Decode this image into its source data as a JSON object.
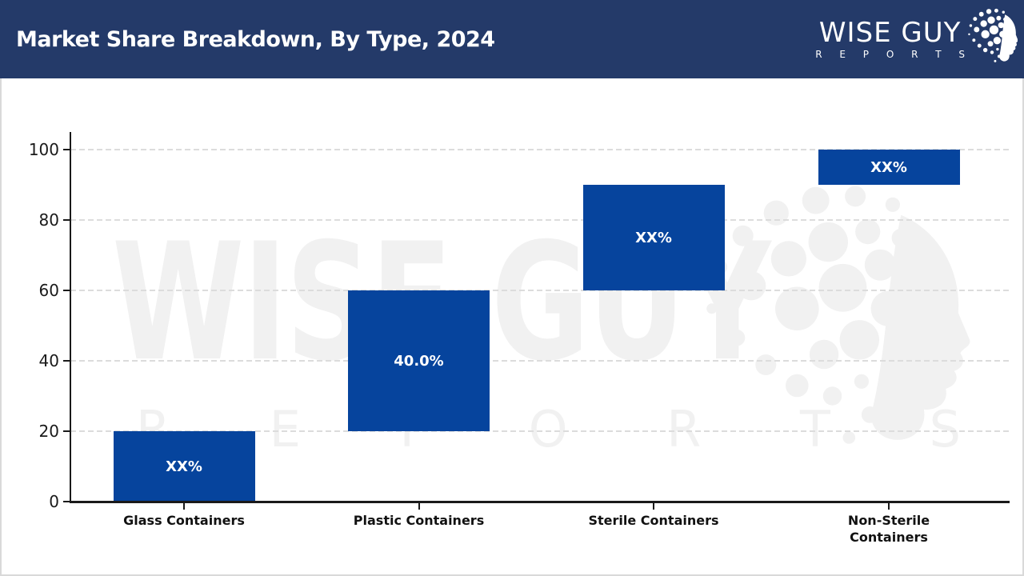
{
  "header": {
    "title": "Market Share Breakdown, By Type, 2024",
    "logo": {
      "name": "WISE GUY",
      "sub": "R E P O R T S"
    }
  },
  "watermark": {
    "name": "WISE GUY",
    "sub": "R E P O R T S"
  },
  "chart_data": {
    "type": "bar",
    "subtype": "waterfall",
    "title": "Market Share Breakdown, By Type, 2024",
    "categories": [
      "Glass Containers",
      "Plastic Containers",
      "Sterile Containers",
      "Non-Sterile\nContainers"
    ],
    "segments": [
      {
        "category": "Glass Containers",
        "start": 0,
        "end": 20,
        "label": "XX%"
      },
      {
        "category": "Plastic Containers",
        "start": 20,
        "end": 60,
        "label": "40.0%"
      },
      {
        "category": "Sterile Containers",
        "start": 60,
        "end": 90,
        "label": "XX%"
      },
      {
        "category": "Non-Sterile Containers",
        "start": 90,
        "end": 100,
        "label": "XX%"
      }
    ],
    "yticks": [
      0,
      20,
      40,
      60,
      80,
      100
    ],
    "ylim": [
      0,
      100
    ],
    "xlabel": "",
    "ylabel": "",
    "grid": "dashed-horizontal",
    "legend": "none",
    "bar_color": "#06449d"
  },
  "colors": {
    "header_bg": "#243a69",
    "bar": "#06449d",
    "axis": "#1a1a1a",
    "grid": "#dcdcdc",
    "watermark": "#f1f1f1",
    "page_border": "#d9d9d9",
    "bar_label": "#ffffff"
  }
}
